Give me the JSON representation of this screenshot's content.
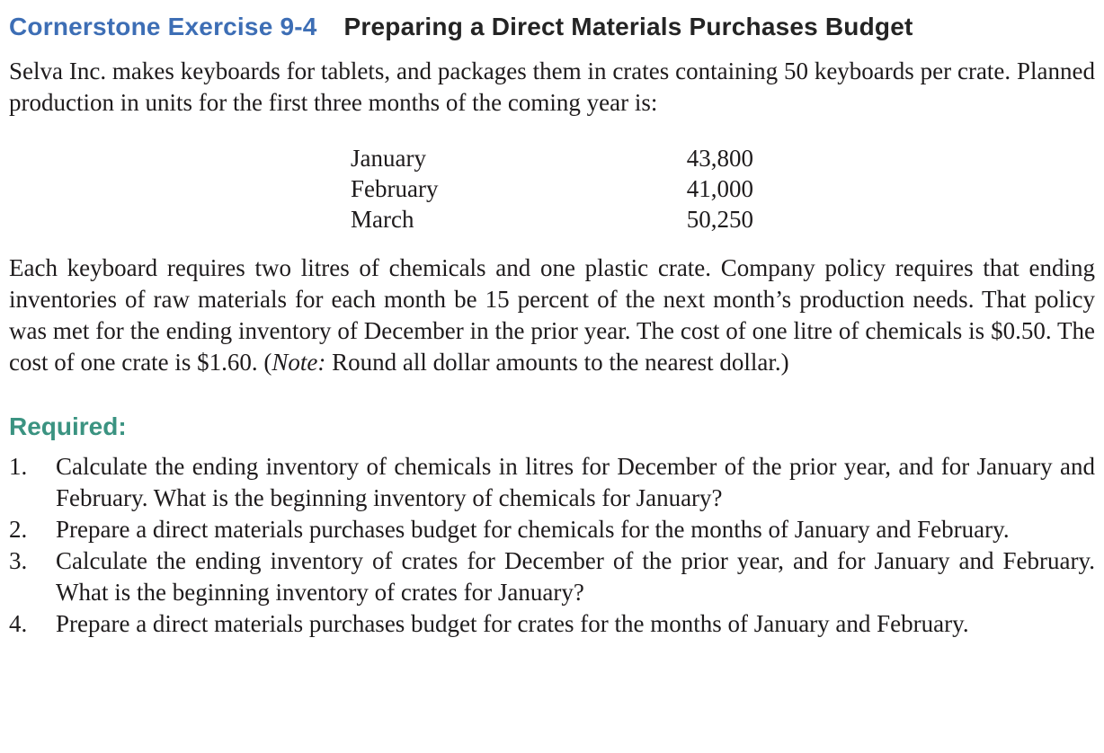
{
  "header": {
    "exercise_label": "Cornerstone Exercise 9-4",
    "exercise_title": "Preparing a Direct Materials Purchases Budget"
  },
  "intro_paragraph": "Selva Inc. makes keyboards for tablets, and packages them in crates containing 50 keyboards per crate. Planned production in units for the first three months of the coming year is:",
  "production_table": {
    "rows": [
      {
        "month": "January",
        "units": "43,800"
      },
      {
        "month": "February",
        "units": "41,000"
      },
      {
        "month": "March",
        "units": "50,250"
      }
    ]
  },
  "policy_paragraph": {
    "before_note": "Each keyboard requires two litres of chemicals and one plastic crate. Company policy requires that ending inventories of raw materials for each month be 15 percent of the next month’s production needs. That policy was met for the ending inventory of December in the prior year. The cost of one litre of chemicals is $0.50. The cost of one crate is $1.60. (",
    "note_label": "Note:",
    "after_note": " Round all dollar amounts to the nearest dollar.)"
  },
  "required": {
    "heading": "Required:",
    "items": [
      {
        "num": "1.",
        "text": "Calculate the ending inventory of chemicals in litres for December of the prior year, and for January and February. What is the beginning inventory of chemicals for January?"
      },
      {
        "num": "2.",
        "text": "Prepare a direct materials purchases budget for chemicals for the months of January and February."
      },
      {
        "num": "3.",
        "text": "Calculate the ending inventory of crates for December of the prior year, and for January and February. What is the beginning inventory of crates for January?"
      },
      {
        "num": "4.",
        "text": "Prepare a direct materials purchases budget for crates for the months of January and February."
      }
    ]
  },
  "colors": {
    "exercise_label_blue": "#3d6eb5",
    "required_teal": "#3b9381",
    "body_text": "#1e1b1c",
    "background": "#ffffff"
  }
}
